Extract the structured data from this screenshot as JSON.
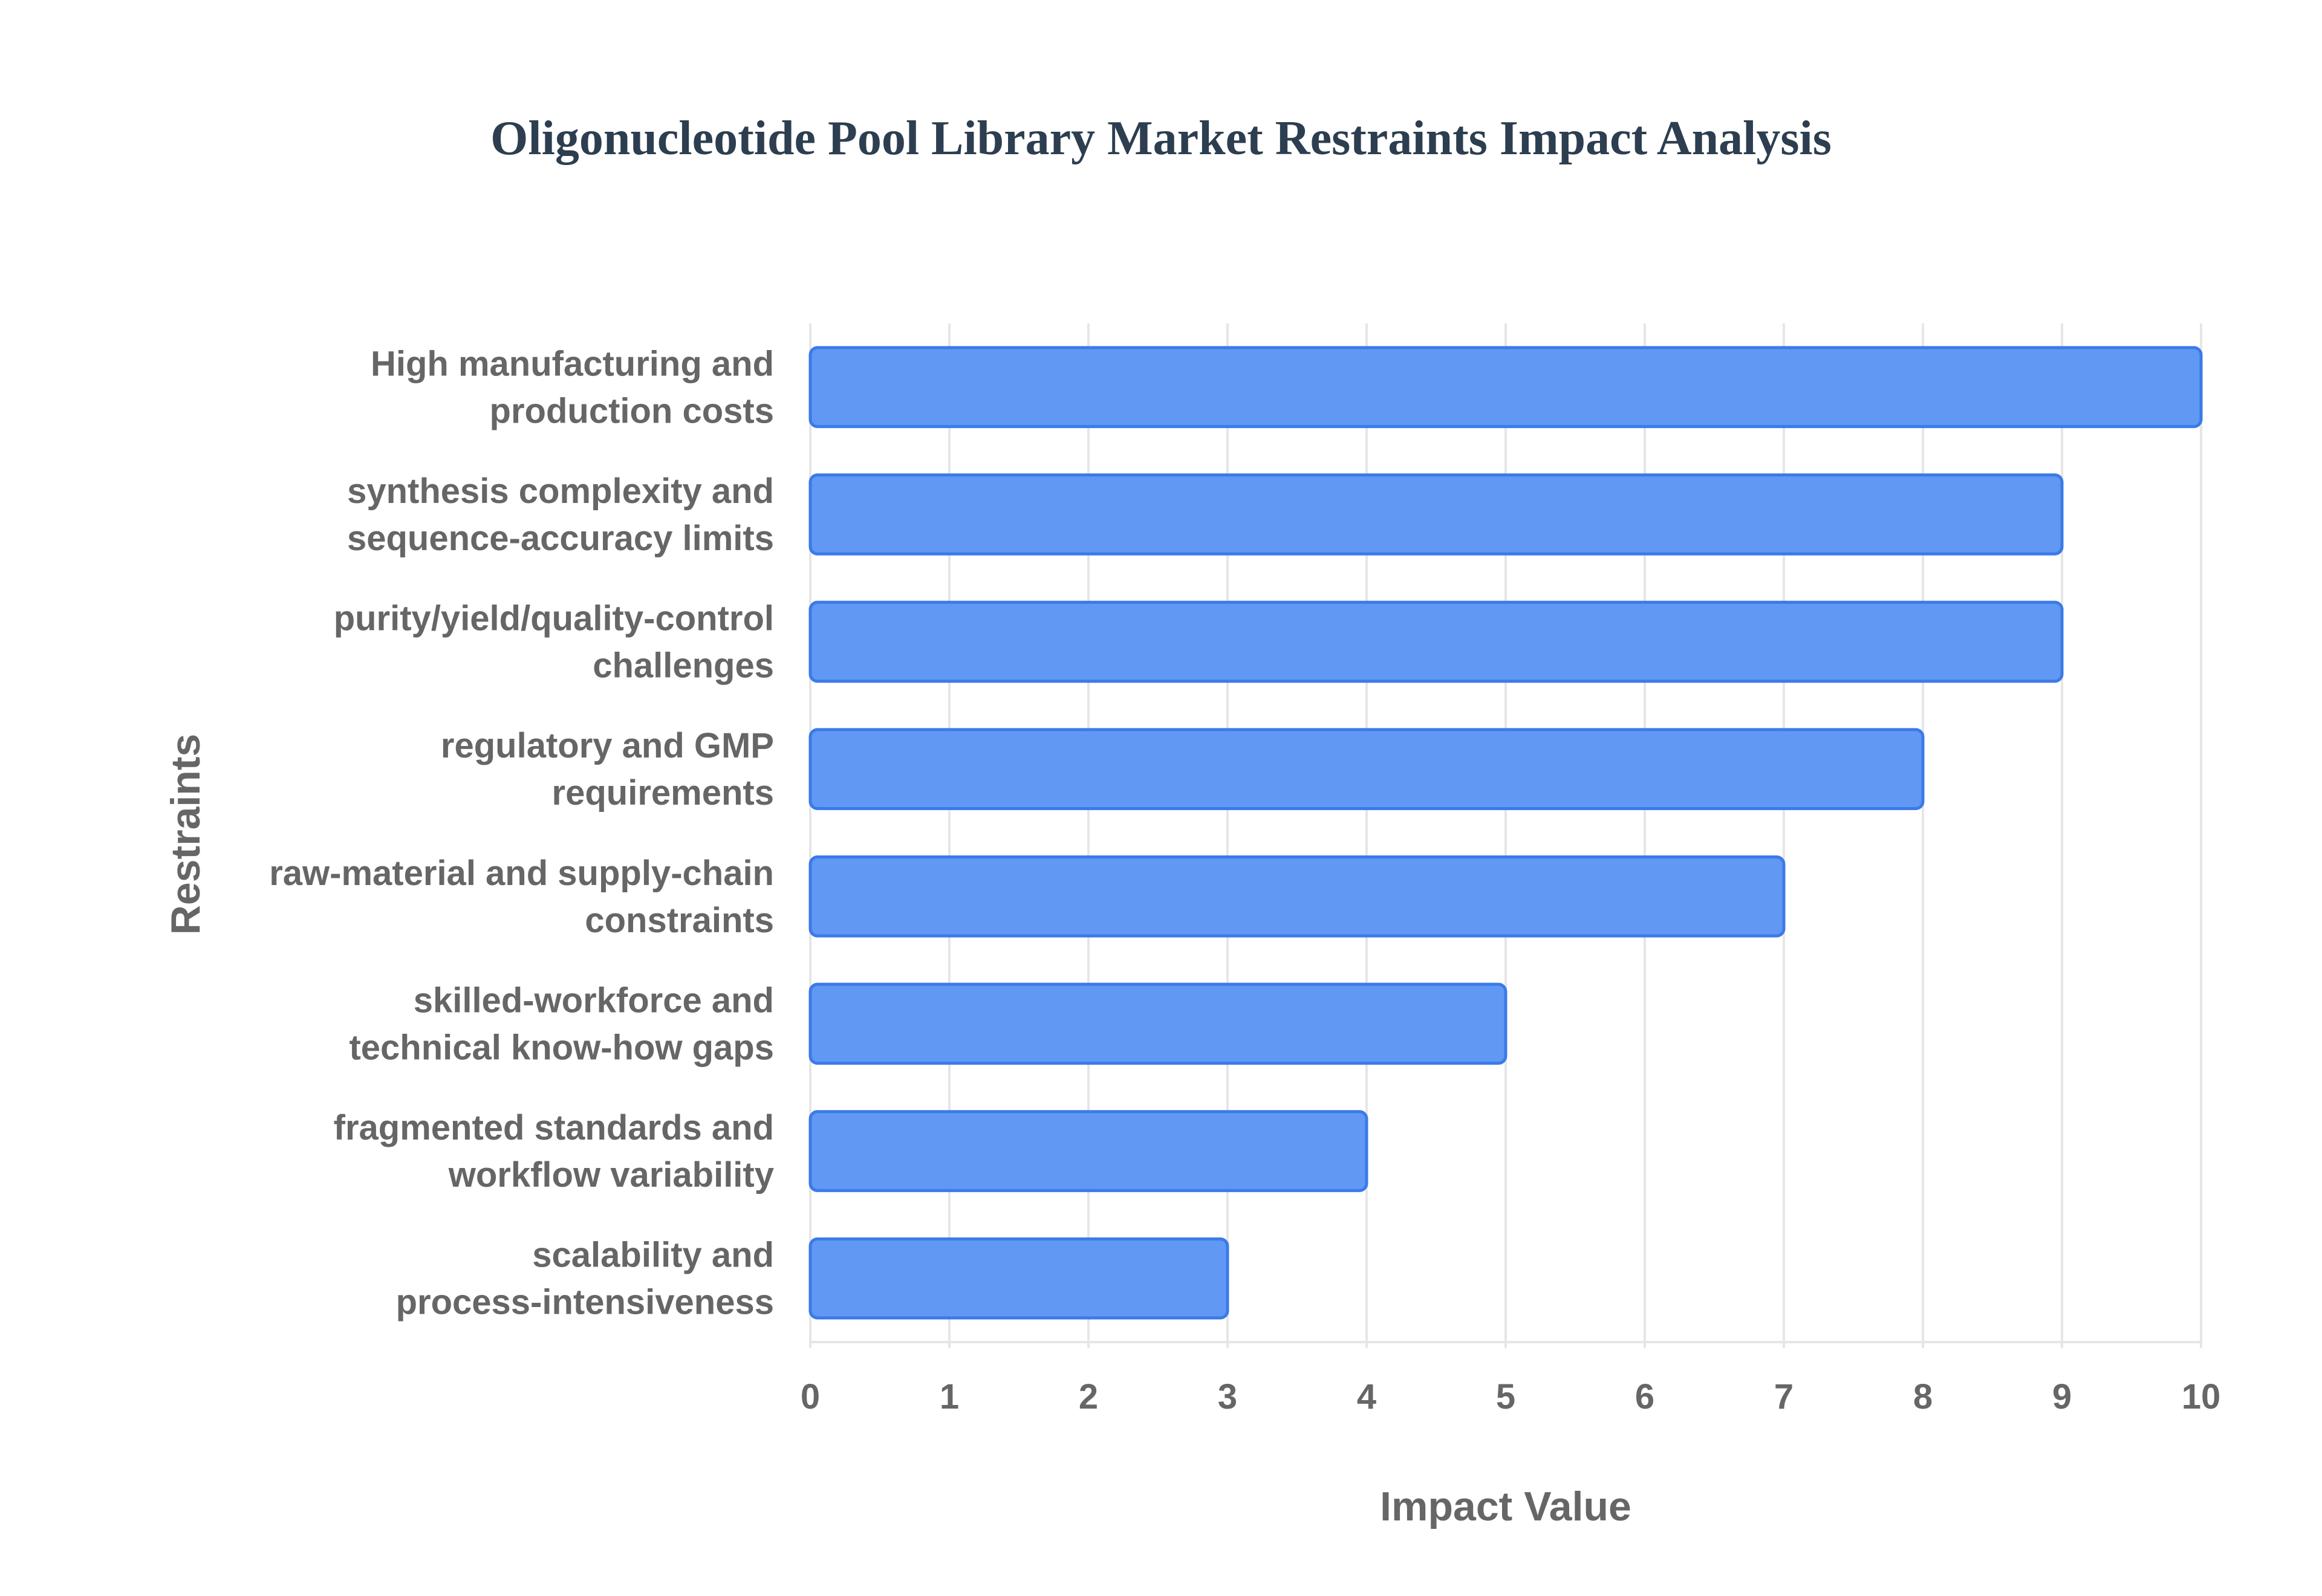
{
  "chart_data": {
    "type": "bar",
    "orientation": "horizontal",
    "title": "Oligonucleotide Pool Library Market Restraints Impact Analysis",
    "xlabel": "Impact Value",
    "ylabel": "Restraints",
    "xlim": [
      0,
      10
    ],
    "x_ticks": [
      "0",
      "1",
      "2",
      "3",
      "4",
      "5",
      "6",
      "7",
      "8",
      "9",
      "10"
    ],
    "grid": true,
    "categories": [
      [
        "High manufacturing and",
        "production costs"
      ],
      [
        "synthesis complexity and",
        "sequence-accuracy limits"
      ],
      [
        "purity/yield/quality-control",
        "challenges"
      ],
      [
        "regulatory and GMP",
        "requirements"
      ],
      [
        "raw-material and supply-chain",
        "constraints"
      ],
      [
        "skilled-workforce and",
        "technical know-how gaps"
      ],
      [
        "fragmented standards and",
        "workflow variability"
      ],
      [
        "scalability and",
        "process-intensiveness"
      ]
    ],
    "values": [
      10,
      9,
      9,
      8,
      7,
      5,
      4,
      3
    ],
    "colors": {
      "bar_fill": "#6098f4",
      "bar_stroke": "#3b7ae8",
      "grid": "#e6e6e6",
      "title": "#2c3e50",
      "text": "#666666"
    }
  }
}
